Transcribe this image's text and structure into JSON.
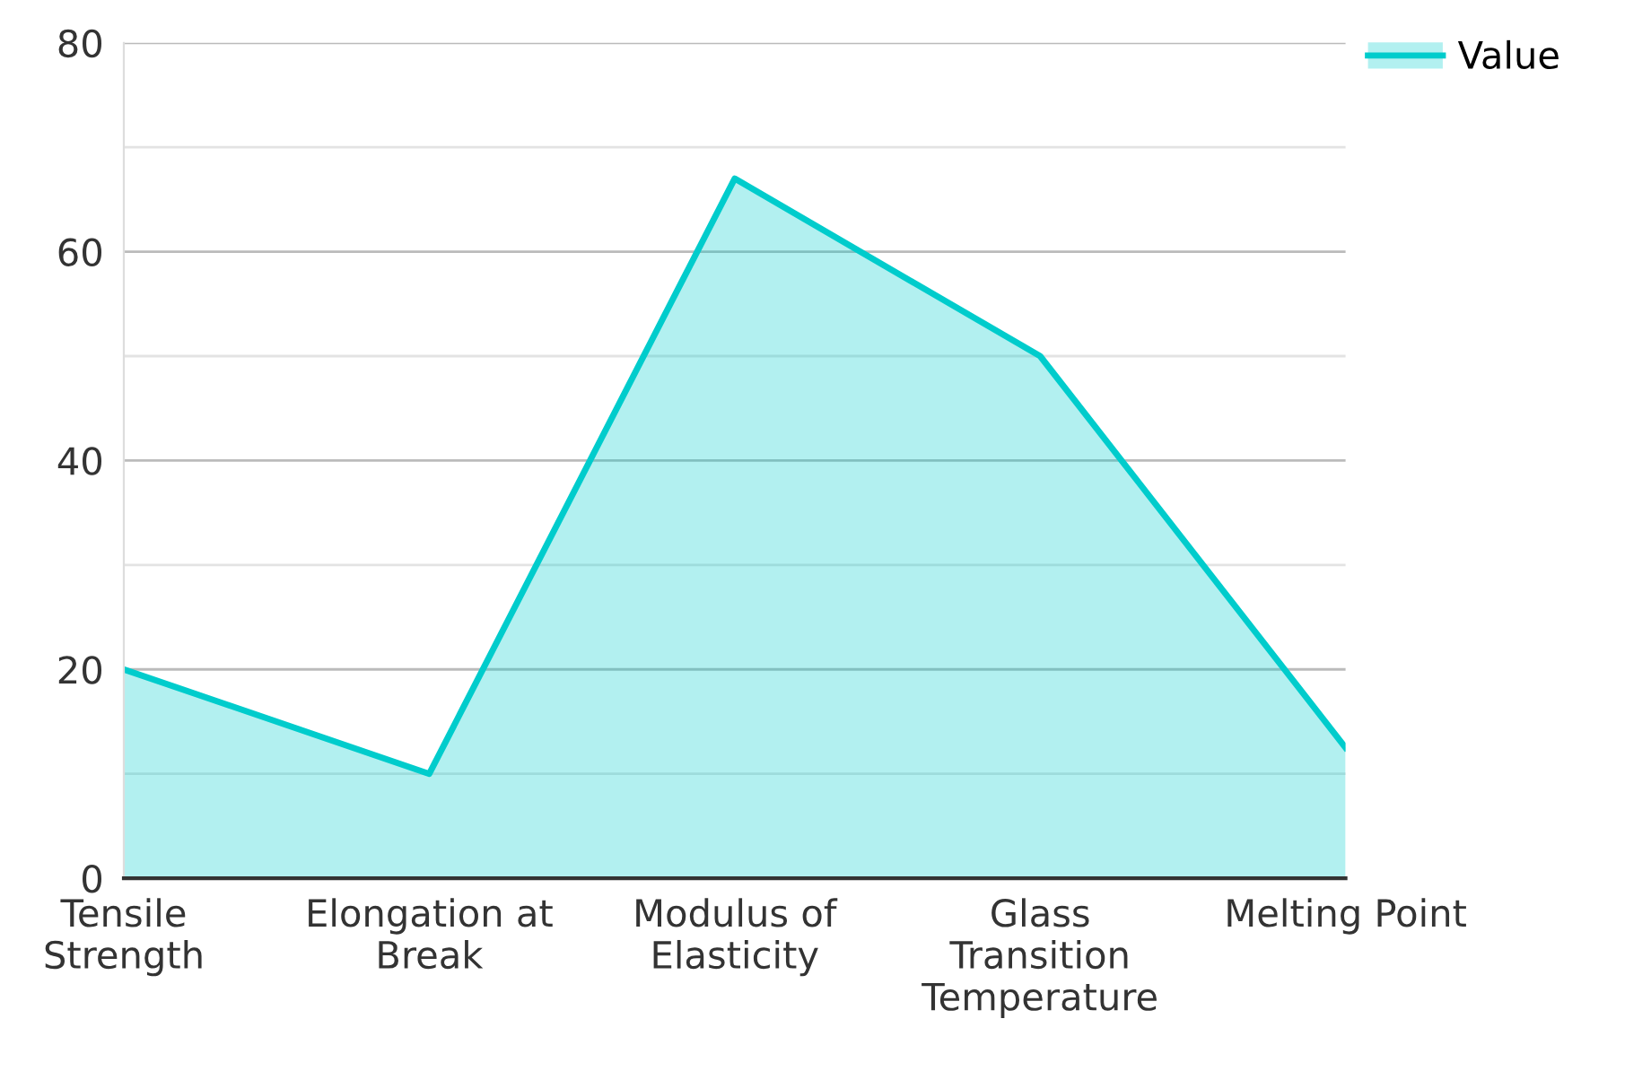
{
  "chart_data": {
    "type": "area",
    "categories": [
      "Tensile Strength",
      "Elongation at Break",
      "Modulus of Elasticity",
      "Glass Transition Temperature",
      "Melting Point"
    ],
    "series": [
      {
        "name": "Value",
        "color": "#00cccc",
        "values": [
          20,
          10,
          67,
          50,
          12.5
        ]
      }
    ],
    "ylim": [
      0,
      80
    ],
    "yticks": [
      0,
      {
        "value": 10,
        "label": null
      },
      20,
      {
        "value": 30,
        "label": null
      },
      40,
      {
        "value": 50,
        "label": null
      },
      60,
      {
        "value": 70,
        "label": null
      },
      80
    ],
    "grid": "y",
    "legend": "top right"
  }
}
